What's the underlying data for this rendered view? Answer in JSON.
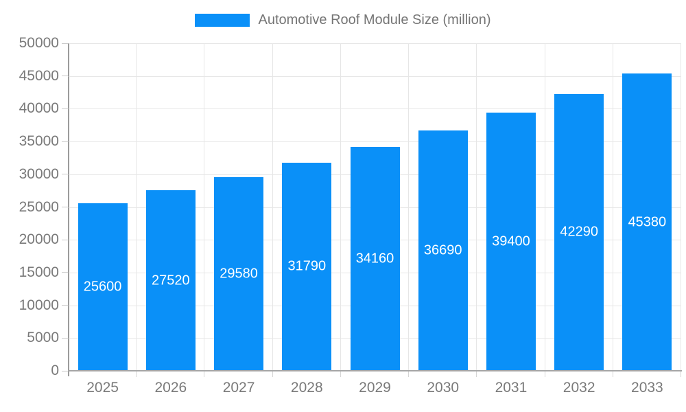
{
  "chart_data": {
    "type": "bar",
    "title": "Automotive Roof Module Size (million)",
    "categories": [
      "2025",
      "2026",
      "2027",
      "2028",
      "2029",
      "2030",
      "2031",
      "2032",
      "2033"
    ],
    "values": [
      25600,
      27520,
      29580,
      31790,
      34160,
      36690,
      39400,
      42290,
      45380
    ],
    "value_labels": [
      "25600",
      "27520",
      "29580",
      "31790",
      "34160",
      "36690",
      "39400",
      "42290",
      "45380"
    ],
    "xlabel": "",
    "ylabel": "",
    "ylim": [
      0,
      50000
    ],
    "ytick_step": 5000,
    "ytick_labels": [
      "0",
      "5000",
      "10000",
      "15000",
      "20000",
      "25000",
      "30000",
      "35000",
      "40000",
      "45000",
      "50000"
    ],
    "grid": true,
    "legend_position": "top",
    "bar_color": "#0a90f8",
    "value_label_color": "#ffffff"
  },
  "legend": {
    "label": "Automotive Roof Module Size (million)",
    "swatch_color": "#0a90f8"
  },
  "colors": {
    "axis_text": "#7a7a7a",
    "legend_text": "#757575",
    "gridline": "#e6e6e6",
    "y_axis_line": "#9b9b9b",
    "x_axis_line": "#a6a6a6"
  }
}
